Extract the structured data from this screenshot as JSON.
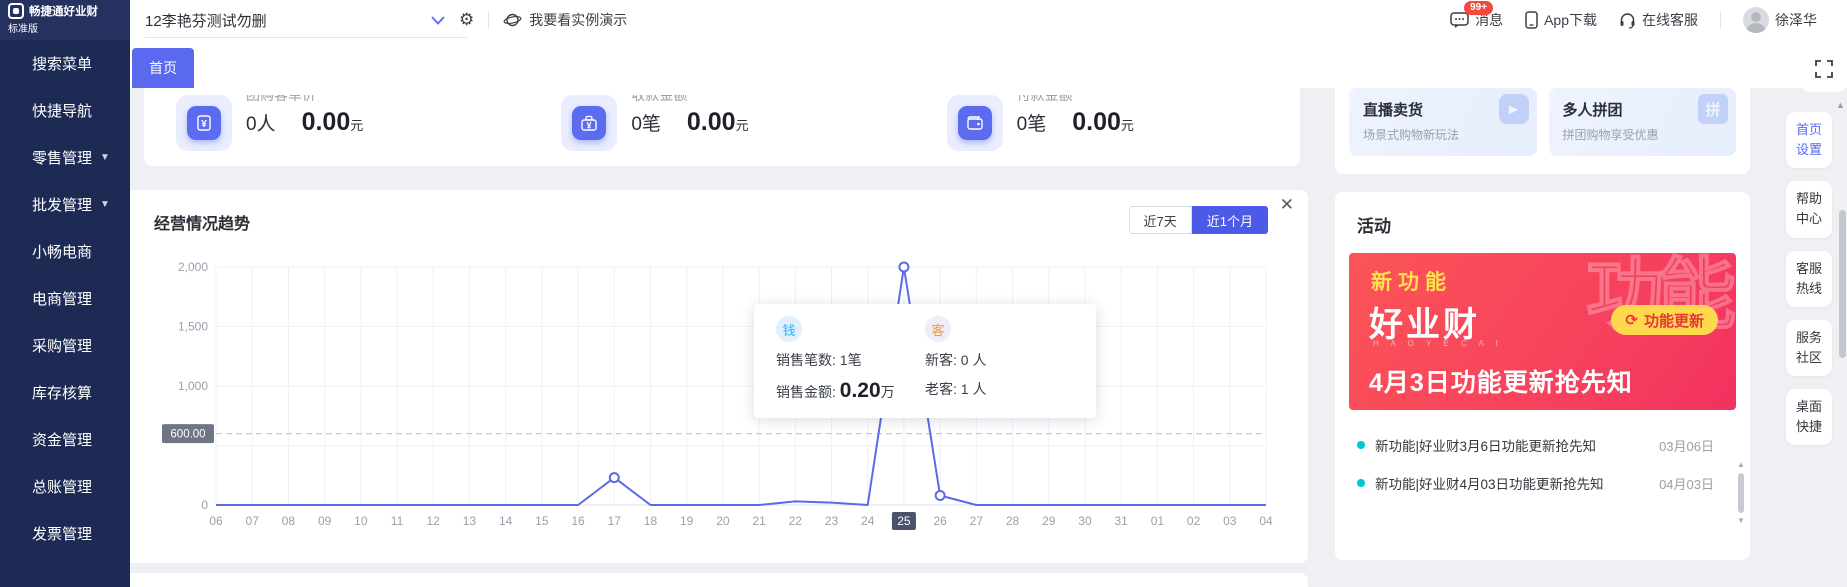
{
  "topbar": {
    "logo_title": "畅捷通好业财",
    "logo_subtitle": "标准版",
    "account_selector": "12李艳芬测试勿删",
    "demo_link": "我要看实例演示",
    "messages_label": "消息",
    "messages_badge": "99+",
    "app_download_label": "App下载",
    "online_service_label": "在线客服",
    "username": "徐泽华"
  },
  "tabs": {
    "home": "首页"
  },
  "sidebar": {
    "items": [
      {
        "label": "搜索菜单"
      },
      {
        "label": "快捷导航"
      },
      {
        "label": "零售管理"
      },
      {
        "label": "批发管理"
      },
      {
        "label": "小畅电商"
      },
      {
        "label": "电商管理"
      },
      {
        "label": "采购管理"
      },
      {
        "label": "库存核算"
      },
      {
        "label": "资金管理"
      },
      {
        "label": "总账管理"
      },
      {
        "label": "发票管理"
      }
    ]
  },
  "stats": [
    {
      "title": "团购客单价",
      "count": "0人",
      "amount": "0.00",
      "unit": "元",
      "icon": "yuan-note-icon"
    },
    {
      "title": "收款金额",
      "count": "0笔",
      "amount": "0.00",
      "unit": "元",
      "icon": "purse-icon"
    },
    {
      "title": "付款金额",
      "count": "0笔",
      "amount": "0.00",
      "unit": "元",
      "icon": "wallet-icon"
    }
  ],
  "promos": [
    {
      "title": "直播卖货",
      "subtitle": "场景式购物新玩法",
      "deco": "▶",
      "icon": "play-icon"
    },
    {
      "title": "多人拼团",
      "subtitle": "拼团购物享受优惠",
      "deco": "拼",
      "icon": "pin-badge-icon"
    }
  ],
  "chart_card": {
    "title": "经营情况趋势",
    "range_buttons": [
      {
        "label": "近7天",
        "active": false
      },
      {
        "label": "近1个月",
        "active": true
      }
    ],
    "close_label": "✕"
  },
  "chart_data": {
    "type": "line",
    "title": "经营情况趋势",
    "x": [
      "06",
      "07",
      "08",
      "09",
      "10",
      "11",
      "12",
      "13",
      "14",
      "15",
      "16",
      "17",
      "18",
      "19",
      "20",
      "21",
      "22",
      "23",
      "24",
      "25",
      "26",
      "27",
      "28",
      "29",
      "30",
      "31",
      "01",
      "02",
      "03",
      "04"
    ],
    "values": [
      0,
      0,
      0,
      0,
      0,
      0,
      0,
      0,
      0,
      0,
      0,
      230,
      0,
      0,
      0,
      0,
      30,
      20,
      0,
      2000,
      80,
      0,
      0,
      0,
      0,
      0,
      0,
      0,
      0,
      0
    ],
    "ylim": [
      0,
      2000
    ],
    "yticks": [
      {
        "value": 2000,
        "label": "2,000"
      },
      {
        "value": 1500,
        "label": "1,500"
      },
      {
        "value": 1000,
        "label": "1,000"
      },
      {
        "value": 500,
        "label": ""
      },
      {
        "value": 0,
        "label": "0"
      }
    ],
    "reference_line": {
      "value": 600,
      "label": "600.00"
    },
    "highlight_label": "25",
    "marker_indices": [
      11,
      19,
      20
    ],
    "line_color": "#5a6ae8",
    "grid": true,
    "legend_position": "none"
  },
  "tooltip": {
    "money_badge": "钱",
    "sales_count_label": "销售笔数:",
    "sales_count_value": "1笔",
    "sales_amount_label": "销售金额:",
    "sales_amount_value": "0.20",
    "sales_amount_unit": "万",
    "customer_badge": "客",
    "new_customer_label": "新客:",
    "new_customer_value": "0 人",
    "old_customer_label": "老客:",
    "old_customer_value": "1 人"
  },
  "activity": {
    "title": "活动",
    "banner": {
      "tag": "新功能",
      "brand": "好业财",
      "brand_sub": "H A O Y E C A I",
      "update_pill": "功能更新",
      "refresh_icon": "⟳",
      "headline": "4月3日功能更新抢先知",
      "watermark": "功能"
    },
    "news": [
      {
        "text": "新功能|好业财3月6日功能更新抢先知",
        "date": "03月06日"
      },
      {
        "text": "新功能|好业财4月03日功能更新抢先知",
        "date": "04月03日"
      }
    ]
  },
  "right_rail": {
    "buttons": [
      {
        "label": "首页设置",
        "active": true
      },
      {
        "label": "帮助中心",
        "active": false
      },
      {
        "label": "客服热线",
        "active": false
      },
      {
        "label": "服务社区",
        "active": false
      },
      {
        "label": "桌面快捷",
        "active": false
      }
    ]
  },
  "colors": {
    "accent_blue": "#5a69ee",
    "button_blue": "#4c5ae8",
    "sidebar_navy": "#1c2a54",
    "banner_red": "#f63e5e",
    "banner_yellow": "#ffd94d",
    "news_cyan": "#00c4d8",
    "badge_red": "#f5483f",
    "chart_line": "#5a6ae8"
  }
}
